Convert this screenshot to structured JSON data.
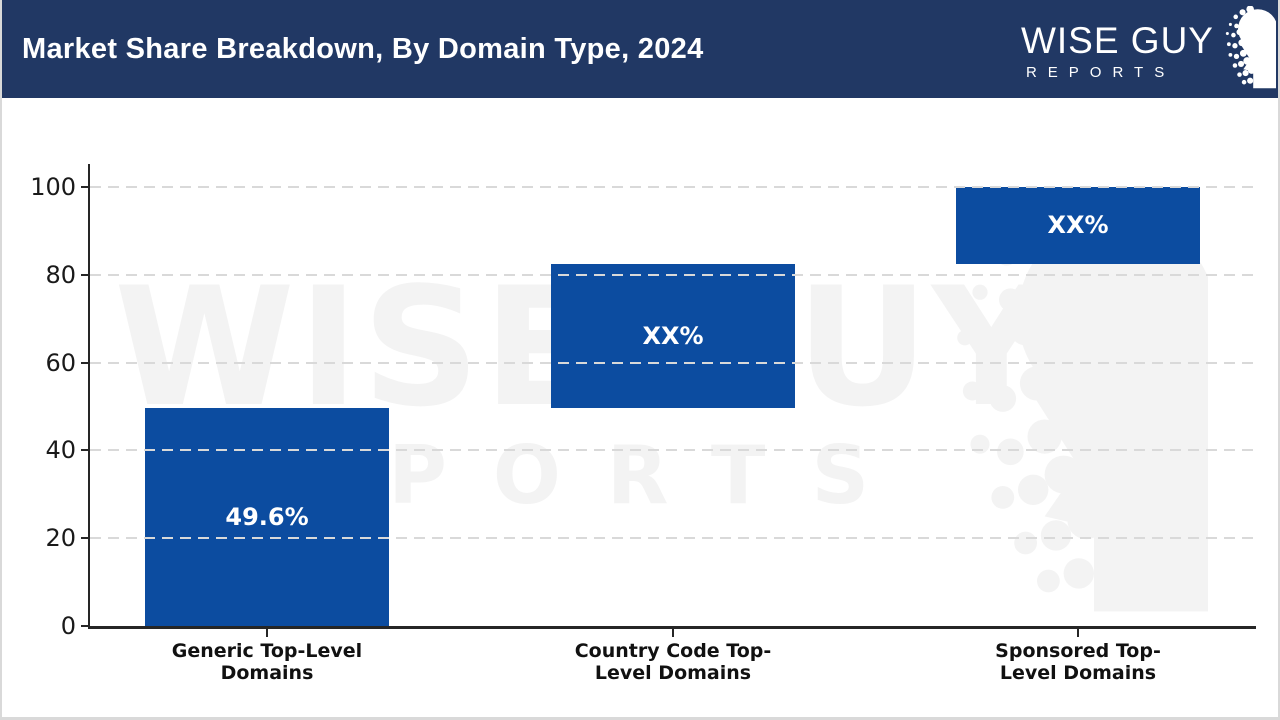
{
  "header": {
    "title": "Market Share Breakdown, By Domain Type, 2024",
    "logo": {
      "brand_line1": "WISE GUY",
      "brand_line2": "REPORTS"
    }
  },
  "watermark": {
    "line1": "WISE GUY",
    "line2": "REPORTS"
  },
  "colors": {
    "header_bg": "#213864",
    "bar": "#0c4ca0",
    "grid": "#d9d9d9",
    "axis": "#262626",
    "watermark": "#f3f3f3",
    "bar_label": "#ffffff",
    "title_text": "#ffffff"
  },
  "chart_data": {
    "type": "bar",
    "subtype": "floating-segment-bars-waterfall-style",
    "title": "Market Share Breakdown, By Domain Type, 2024",
    "categories": [
      "Generic Top-Level\nDomains",
      "Country Code Top-\nLevel Domains",
      "Sponsored Top-\nLevel Domains"
    ],
    "segments": [
      {
        "category": "Generic Top-Level Domains",
        "label": "49.6%",
        "start": 0,
        "end": 49.6,
        "estimated": false
      },
      {
        "category": "Country Code Top-Level Domains",
        "label": "XX%",
        "start": 49.6,
        "end": 82.5,
        "estimated": true
      },
      {
        "category": "Sponsored Top-Level Domains",
        "label": "XX%",
        "start": 82.5,
        "end": 100,
        "estimated": true
      }
    ],
    "ylim": [
      0,
      100
    ],
    "yticks": [
      0,
      20,
      40,
      60,
      80,
      100
    ],
    "xlabel": "",
    "ylabel": "",
    "grid": "horizontal-dashed",
    "legend": "none"
  }
}
